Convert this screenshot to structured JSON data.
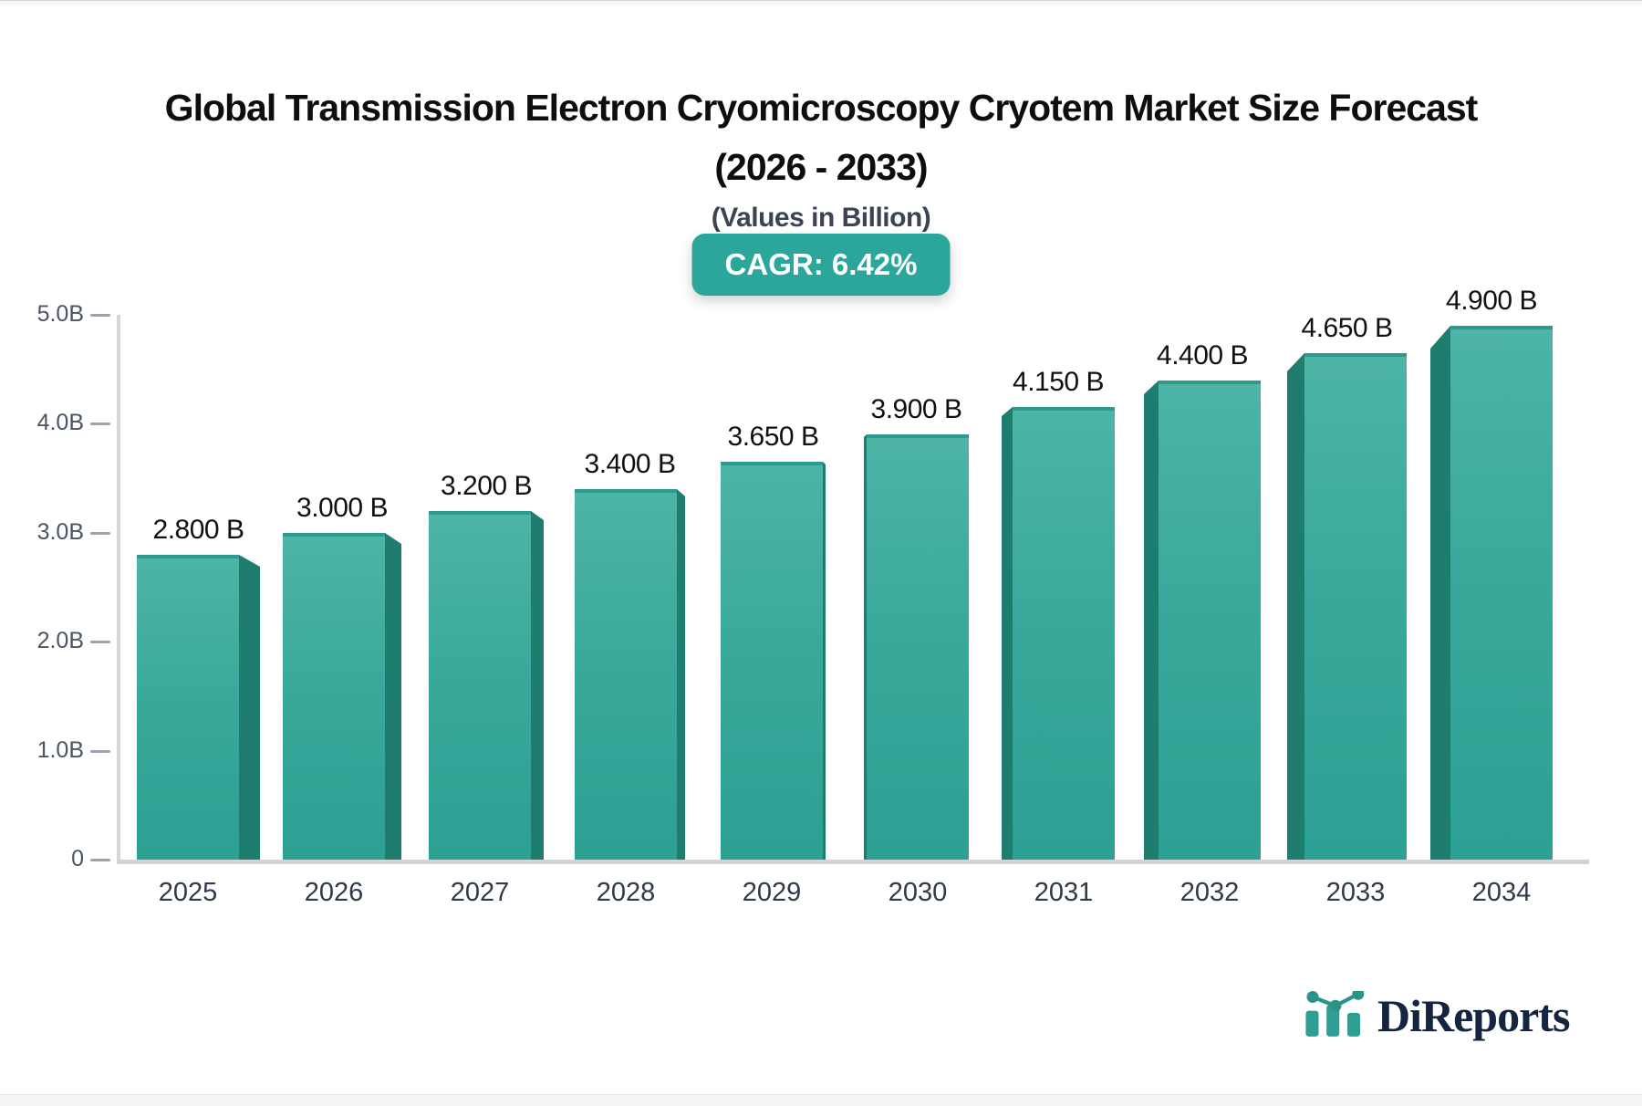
{
  "header": {
    "title_line1": "Global Transmission Electron Cryomicroscopy Cryotem Market Size Forecast",
    "title_line2": "(2026 - 2033)",
    "subtitle": "(Values in Billion)",
    "cagr_badge": "CAGR: 6.42%"
  },
  "chart_data": {
    "type": "bar",
    "title": "Global Transmission Electron Cryomicroscopy Cryotem Market Size Forecast (2026 - 2033)",
    "subtitle": "(Values in Billion)",
    "annotations": [
      "CAGR: 6.42%"
    ],
    "unit": "Billion",
    "categories": [
      "2025",
      "2026",
      "2027",
      "2028",
      "2029",
      "2030",
      "2031",
      "2032",
      "2033",
      "2034"
    ],
    "values": [
      2.8,
      3.0,
      3.2,
      3.4,
      3.65,
      3.9,
      4.15,
      4.4,
      4.65,
      4.9
    ],
    "bar_labels": [
      "2.800 B",
      "3.000 B",
      "3.200 B",
      "3.400 B",
      "3.650 B",
      "3.900 B",
      "4.150 B",
      "4.400 B",
      "4.650 B",
      "4.900 B"
    ],
    "ylim": [
      0,
      5
    ],
    "yticks": [
      {
        "value": 5,
        "label": "5.0B"
      },
      {
        "value": 4,
        "label": "4.0B"
      },
      {
        "value": 3,
        "label": "3.0B"
      },
      {
        "value": 2,
        "label": "2.0B"
      },
      {
        "value": 1,
        "label": "1.0B"
      },
      {
        "value": 0,
        "label": "0"
      }
    ],
    "grid": false,
    "legend": false,
    "colors": {
      "bar_face_top": "#4db4a6",
      "bar_face_bottom": "#2ca093",
      "bar_rim": "#2c9b8d",
      "bar_side": "#1f7d70",
      "badge": "#2aa79a",
      "axis": "#d3d6db",
      "tick_dash": "#9aa3ae",
      "tick_text": "#4a5462",
      "label_text": "#101010"
    }
  },
  "footer": {
    "logo_text": "DiReports"
  }
}
